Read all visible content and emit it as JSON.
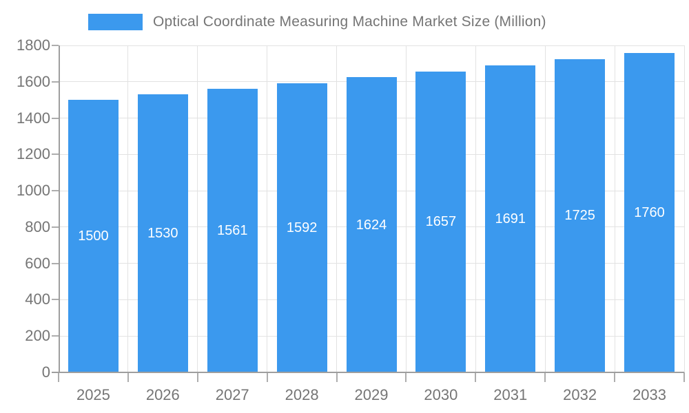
{
  "legend": {
    "label": "Optical Coordinate Measuring Machine Market Size (Million)"
  },
  "chart_data": {
    "type": "bar",
    "title": "Optical Coordinate Measuring Machine Market Size (Million)",
    "categories": [
      "2025",
      "2026",
      "2027",
      "2028",
      "2029",
      "2030",
      "2031",
      "2032",
      "2033"
    ],
    "values": [
      1500,
      1530,
      1561,
      1592,
      1624,
      1657,
      1691,
      1725,
      1760
    ],
    "xlabel": "",
    "ylabel": "",
    "ylim": [
      0,
      1800
    ],
    "yticks": [
      0,
      200,
      400,
      600,
      800,
      1000,
      1200,
      1400,
      1600,
      1800
    ],
    "grid": true,
    "legend_position": "top",
    "value_labels": "inside-middle",
    "colors": {
      "bar": "#3B99EE",
      "bar_value_label": "#FFFFFF",
      "axis_text": "#757575",
      "gridline": "#E2E2E2",
      "axis_line": "#9E9E9E",
      "tick": "#ADADAD",
      "background": "#FFFFFF"
    }
  }
}
